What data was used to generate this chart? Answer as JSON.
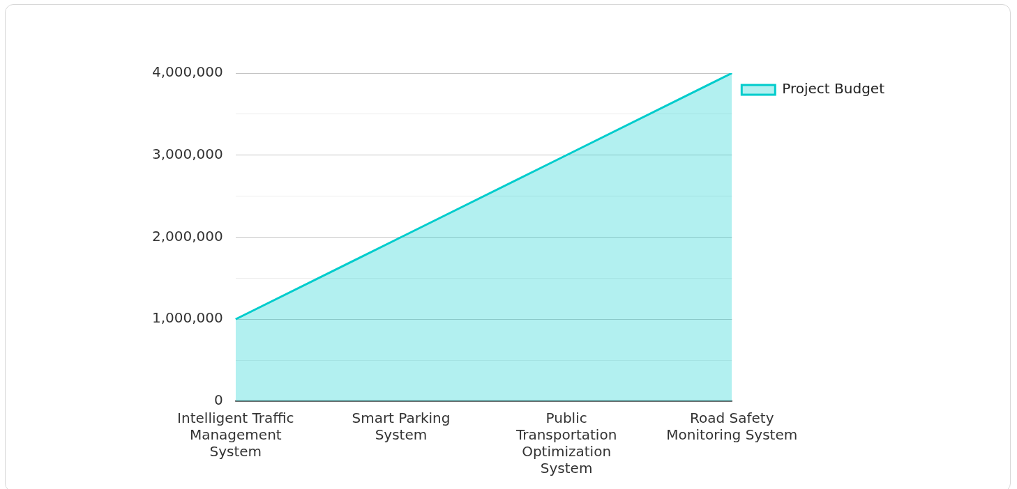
{
  "chart_data": {
    "type": "area",
    "categories": [
      "Intelligent Traffic Management System",
      "Smart Parking System",
      "Public Transportation Optimization System",
      "Road Safety Monitoring System"
    ],
    "series": [
      {
        "name": "Project Budget",
        "color": "#00cccc",
        "values": [
          1000000,
          2000000,
          3000000,
          4000000
        ]
      }
    ],
    "ylim": [
      0,
      4000000
    ],
    "yticks": [
      0,
      {
        "value": 500000,
        "label": null
      },
      {
        "value": 1000000,
        "label": "1,000,000"
      },
      {
        "value": 1500000,
        "label": null
      },
      {
        "value": 2000000,
        "label": "2,000,000"
      },
      {
        "value": 2500000,
        "label": null
      },
      {
        "value": 3000000,
        "label": "3,000,000"
      },
      {
        "value": 3500000,
        "label": null
      },
      {
        "value": 4000000,
        "label": "4,000,000"
      }
    ],
    "grid": "y",
    "legend": "top right",
    "marker": "none",
    "line_style": "solid"
  }
}
